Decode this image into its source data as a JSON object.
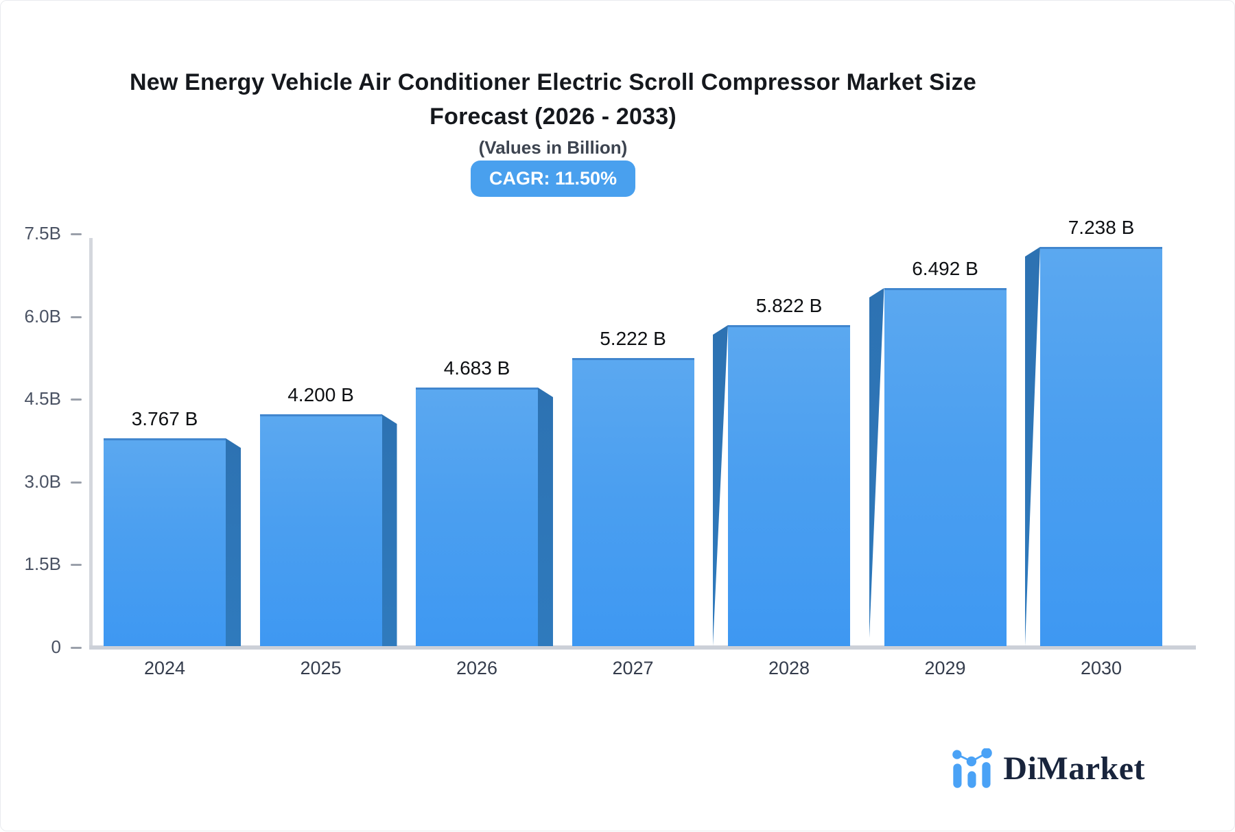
{
  "header": {
    "title_line1": "New Energy Vehicle Air Conditioner Electric Scroll Compressor Market Size",
    "title_line2": "Forecast (2026 - 2033)",
    "subtitle": "(Values in Billion)",
    "cagr_label": "CAGR: 11.50%"
  },
  "chart_data": {
    "type": "bar",
    "title": "New Energy Vehicle Air Conditioner Electric Scroll Compressor Market Size Forecast (2026 - 2033)",
    "subtitle": "(Values in Billion)",
    "cagr_percent": "11.50%",
    "categories": [
      "2024",
      "2025",
      "2026",
      "2027",
      "2028",
      "2029",
      "2030"
    ],
    "values": [
      3.767,
      4.2,
      4.683,
      5.222,
      5.822,
      6.492,
      7.238
    ],
    "value_labels": [
      "3.767 B",
      "4.200 B",
      "4.683 B",
      "5.222 B",
      "5.822 B",
      "6.492 B",
      "7.238 B"
    ],
    "unit": "Billion USD",
    "xlabel": "",
    "ylabel": "",
    "ylim": [
      0,
      7.5
    ],
    "yticks": [
      0,
      1.5,
      3.0,
      4.5,
      6.0,
      7.5
    ],
    "ytick_labels": [
      "0",
      "1.5B",
      "3.0B",
      "4.5B",
      "6.0B",
      "7.5B"
    ],
    "grid": false,
    "legend": false,
    "style": "pseudo-3d bars, perspective toward center bar",
    "bar_face_top_color": "#5ba8f0",
    "bar_face_bottom_color": "#3e98f2",
    "bar_side_color": "#2e76b8",
    "accent_color": "#49a0ee"
  },
  "branding": {
    "logo_text": "DiMarket",
    "logo_icon": "bar-line-chart-icon",
    "logo_icon_color": "#4aa2f6",
    "logo_text_color": "#18243c"
  }
}
